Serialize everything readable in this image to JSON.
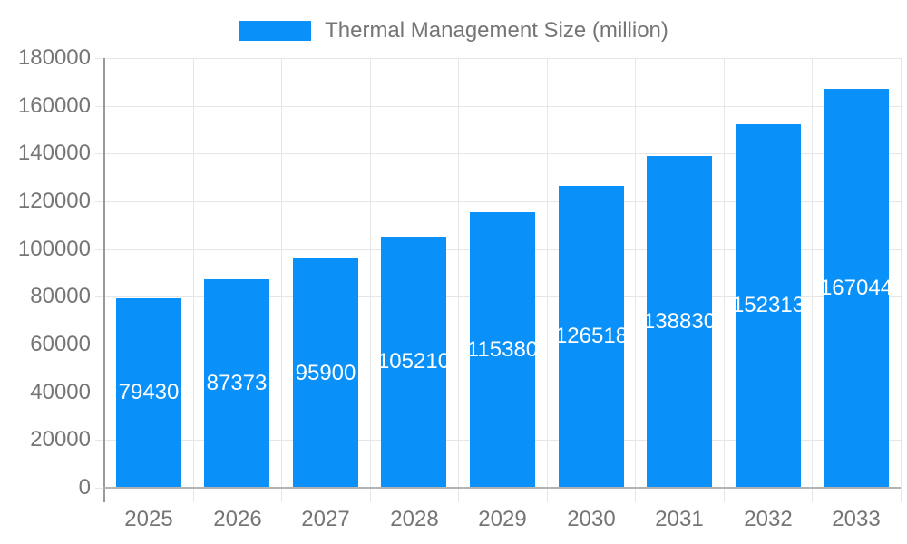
{
  "legend": {
    "label": "Thermal Management Size (million)"
  },
  "colors": {
    "bar": "#0a90f9",
    "bar_label_text": "#ffffff",
    "axis_text": "#757575",
    "gridline": "#e6e6e6",
    "y_axis_line": "#9a9a9a",
    "x_axis_line": "#b3b3b3",
    "background": "#ffffff"
  },
  "chart_data": {
    "type": "bar",
    "title": "",
    "xlabel": "",
    "ylabel": "",
    "legend_entries": [
      "Thermal Management Size (million)"
    ],
    "legend_position": "top-center",
    "grid": true,
    "categories": [
      "2025",
      "2026",
      "2027",
      "2028",
      "2029",
      "2030",
      "2031",
      "2032",
      "2033"
    ],
    "series": [
      {
        "name": "Thermal Management Size (million)",
        "values": [
          79430,
          87373,
          95900,
          105210,
          115380,
          126518,
          138830,
          152313,
          167044
        ]
      }
    ],
    "bar_value_labels": [
      "79430",
      "87373",
      "95900",
      "105210",
      "115380",
      "126518",
      "138830",
      "152313",
      "167044"
    ],
    "ylim": [
      0,
      180000
    ],
    "ytick_step": 20000,
    "yticks": [
      "0",
      "20000",
      "40000",
      "60000",
      "80000",
      "100000",
      "120000",
      "140000",
      "160000",
      "180000"
    ]
  }
}
